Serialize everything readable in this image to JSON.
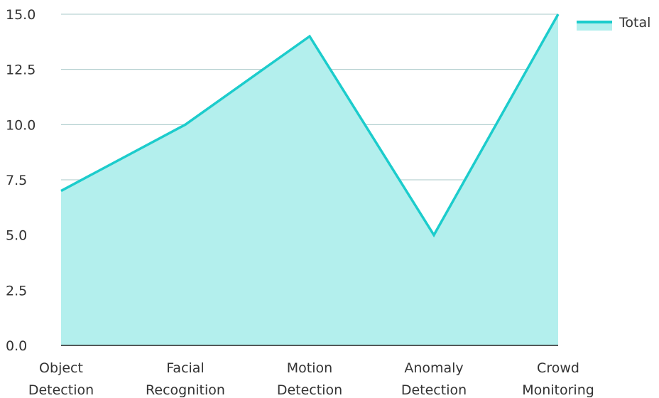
{
  "chart_data": {
    "type": "area",
    "categories": [
      [
        "Object",
        "Detection"
      ],
      [
        "Facial",
        "Recognition"
      ],
      [
        "Motion",
        "Detection"
      ],
      [
        "Anomaly",
        "Detection"
      ],
      [
        "Crowd",
        "Monitoring"
      ]
    ],
    "series": [
      {
        "name": "Total",
        "values": [
          7,
          10,
          14,
          5,
          15
        ],
        "line_color": "#1CCCCC",
        "fill_color": "#B3EFED"
      }
    ],
    "y_ticks": [
      "0.0",
      "2.5",
      "5.0",
      "7.5",
      "10.0",
      "12.5",
      "15.0"
    ],
    "ylim": [
      0,
      15
    ],
    "title": "",
    "xlabel": "",
    "ylabel": "",
    "grid": true,
    "grid_color": "#A9C9C9",
    "axis_color": "#222222",
    "legend_position": "top-right"
  }
}
